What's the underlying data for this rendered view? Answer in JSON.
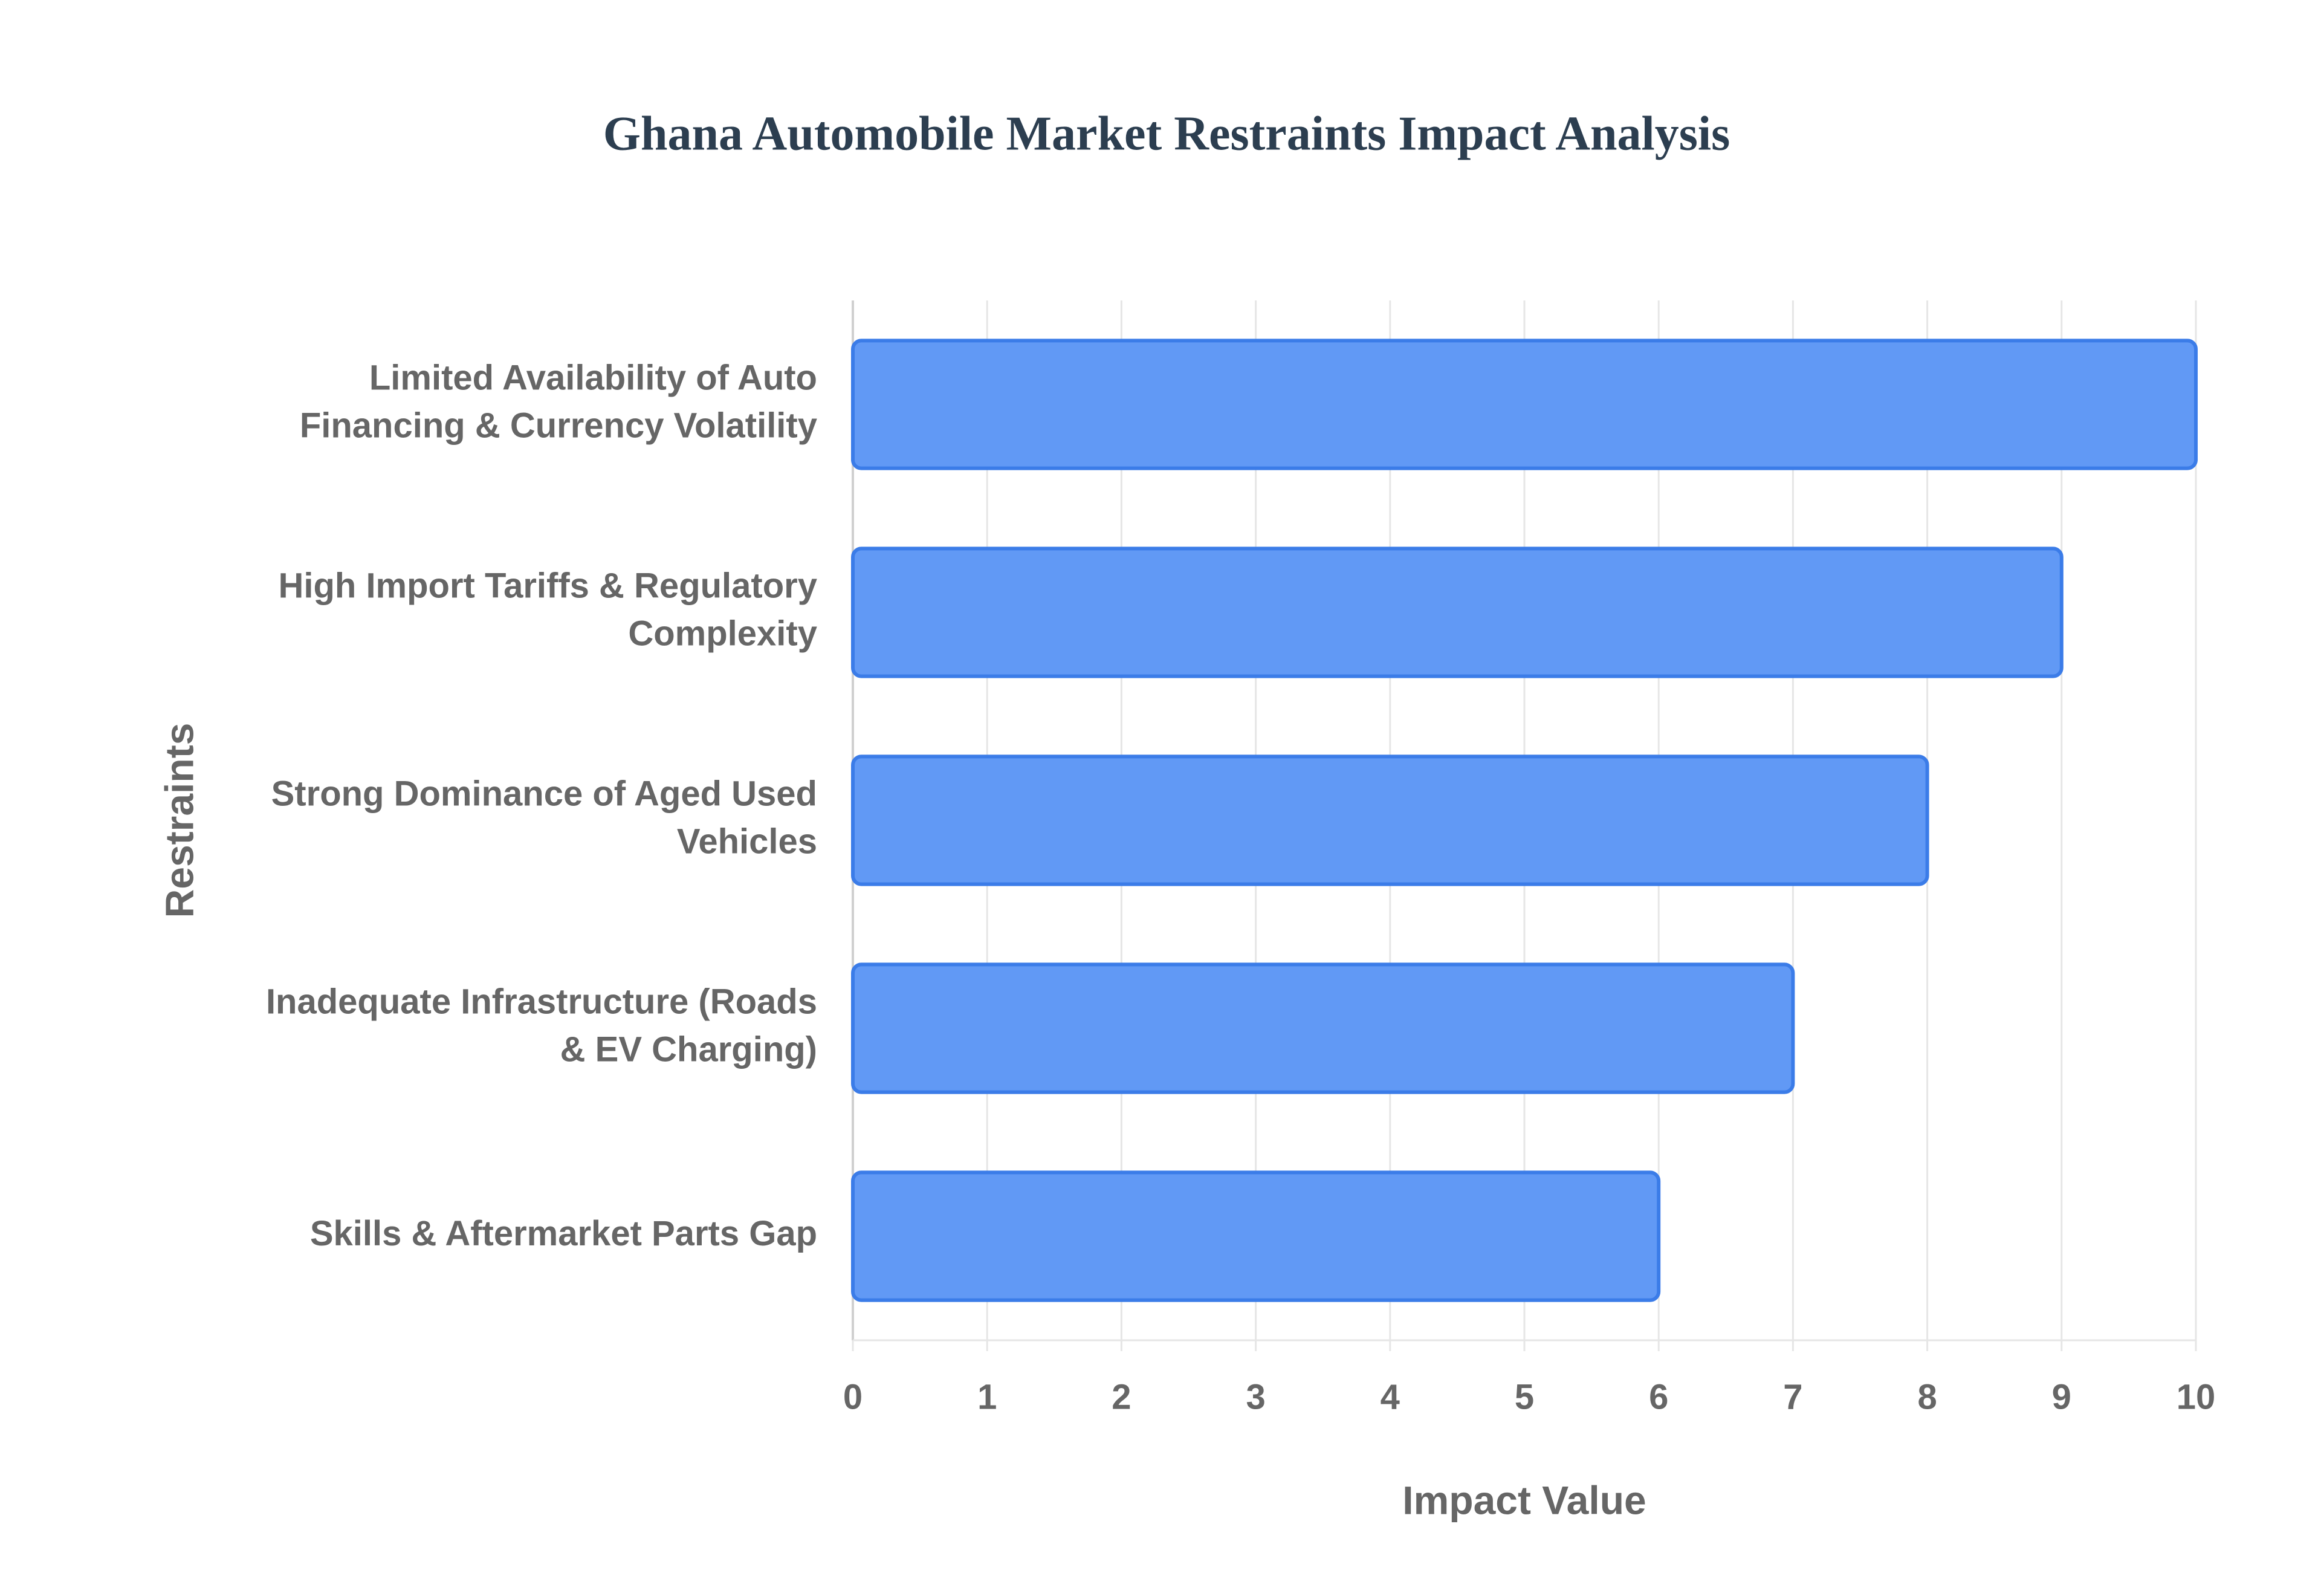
{
  "chart_data": {
    "type": "bar",
    "orientation": "horizontal",
    "title": "Ghana Automobile Market Restraints Impact Analysis",
    "x_label": "Impact Value",
    "y_label": "Restraints",
    "categories": [
      "Limited Availability of Auto Financing & Currency Volatility",
      "High Import Tariffs & Regulatory Complexity",
      "Strong Dominance of Aged Used Vehicles",
      "Inadequate Infrastructure (Roads & EV Charging)",
      "Skills & Aftermarket Parts Gap"
    ],
    "values": [
      10,
      9,
      8,
      7,
      6
    ],
    "color": "#6199f5",
    "edge_color": "#3b7ce8",
    "xlim": [
      0,
      10
    ],
    "xticks": [
      0,
      1,
      2,
      3,
      4,
      5,
      6,
      7,
      8,
      9,
      10
    ],
    "grid": true
  }
}
